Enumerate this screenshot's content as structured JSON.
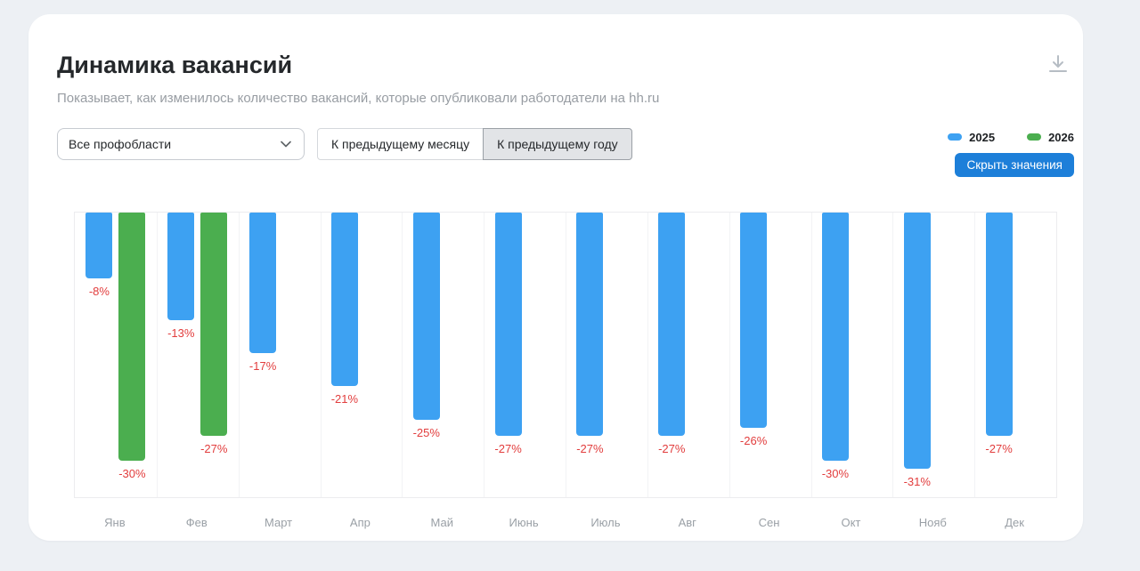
{
  "header": {
    "title": "Динамика вакансий",
    "subtitle": "Показывает, как изменилось количество вакансий, которые опубликовали работодатели на hh.ru"
  },
  "controls": {
    "profarea_select_value": "Все профобласти",
    "period_toggle": [
      {
        "label": "К предыдущему месяцу",
        "active": false
      },
      {
        "label": "К предыдущему году",
        "active": true
      }
    ],
    "hide_values_label": "Скрыть значения"
  },
  "icons": {
    "download": "download-icon",
    "select_chevron": "chevron-down-icon"
  },
  "legend": [
    {
      "label": "2025",
      "color": "#3da1f2"
    },
    {
      "label": "2026",
      "color": "#4bae4f"
    }
  ],
  "chart_data": {
    "type": "bar",
    "title": "Динамика вакансий",
    "categories": [
      "Янв",
      "Фев",
      "Март",
      "Апр",
      "Май",
      "Июнь",
      "Июль",
      "Авг",
      "Сен",
      "Окт",
      "Нояб",
      "Дек"
    ],
    "series": [
      {
        "name": "2025",
        "color": "#3da1f2",
        "values": [
          -8,
          -13,
          -17,
          -21,
          -25,
          -27,
          -27,
          -27,
          -26,
          -30,
          -31,
          -27
        ]
      },
      {
        "name": "2026",
        "color": "#4bae4f",
        "values": [
          -30,
          -27,
          null,
          null,
          null,
          null,
          null,
          null,
          null,
          null,
          null,
          null
        ]
      }
    ],
    "unit": "%",
    "value_labels": true,
    "value_label_color": "#e23d3d",
    "ylim": [
      -34.6,
      0
    ],
    "legend_position": "top-right",
    "grid": "vertical-light"
  }
}
